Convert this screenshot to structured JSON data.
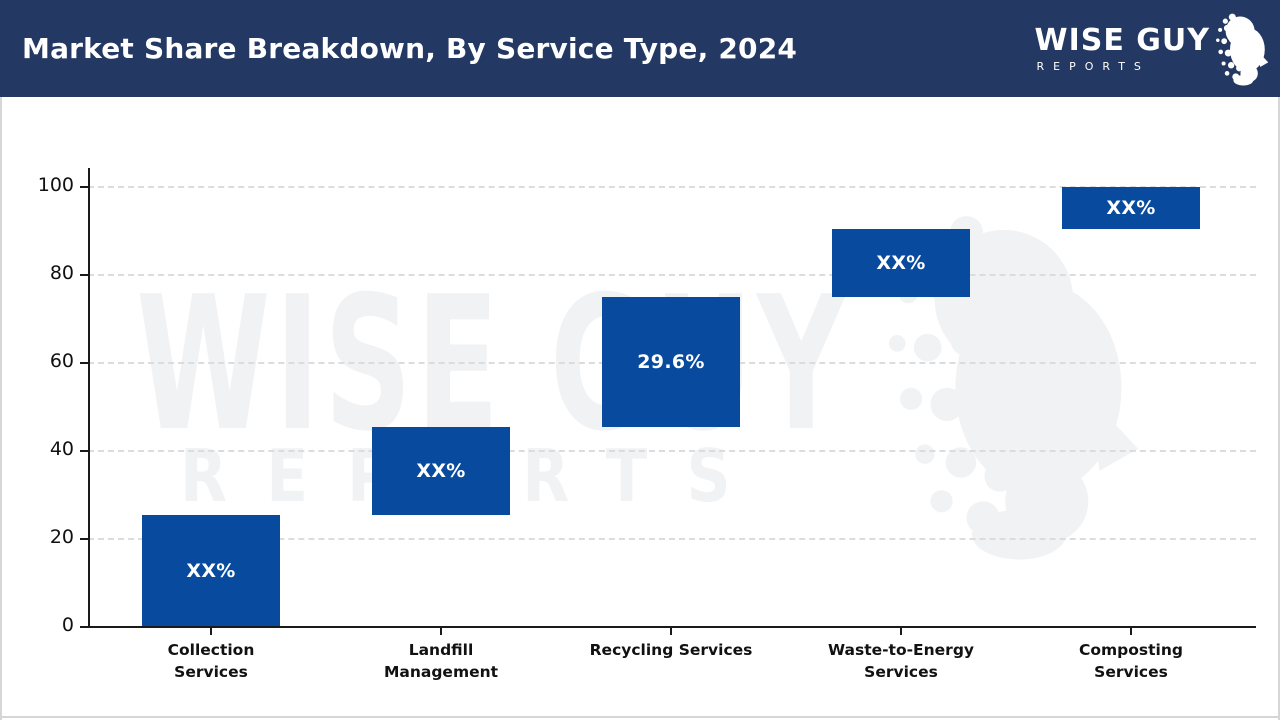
{
  "header": {
    "title": "Market Share Breakdown, By Service Type, 2024",
    "logo": {
      "line1": "WISE GUY",
      "line2": "REPORTS"
    }
  },
  "watermark": {
    "line1": "WISE GUY",
    "line2": "REPORTS"
  },
  "chart_data": {
    "type": "bar",
    "subtype": "floating-waterfall-segments",
    "title": "Market Share Breakdown, By Service Type, 2024",
    "categories": [
      "Collection\nServices",
      "Landfill\nManagement",
      "Recycling Services",
      "Waste-to-Energy\nServices",
      "Composting\nServices"
    ],
    "segments": [
      {
        "category": "Collection\nServices",
        "start": 0,
        "end": 25.5,
        "label": "XX%"
      },
      {
        "category": "Landfill\nManagement",
        "start": 25.5,
        "end": 45.4,
        "label": "XX%"
      },
      {
        "category": "Recycling Services",
        "start": 45.4,
        "end": 75.0,
        "label": "29.6%"
      },
      {
        "category": "Waste-to-Energy\nServices",
        "start": 75.0,
        "end": 90.5,
        "label": "XX%"
      },
      {
        "category": "Composting\nServices",
        "start": 90.5,
        "end": 100,
        "label": "XX%"
      }
    ],
    "yticks": [
      0,
      20,
      40,
      60,
      80,
      100
    ],
    "ylim": [
      0,
      105
    ],
    "xlabel": "",
    "ylabel": "",
    "grid": "dashed-horizontal",
    "legend": "none"
  },
  "colors": {
    "header_bg": "#233862",
    "bar": "#084a9d",
    "bar_label": "#ffffff",
    "grid": "#dcdcdc",
    "axis": "#1a1a1a",
    "watermark": "#f1f2f4",
    "border": "#d6d6d6"
  }
}
